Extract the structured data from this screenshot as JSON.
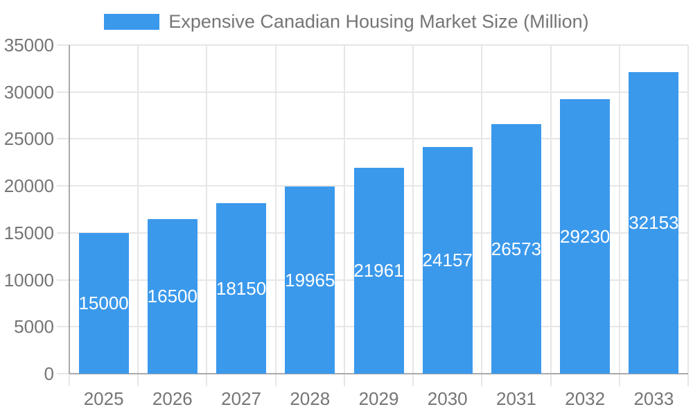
{
  "legend": {
    "label": "Expensive Canadian Housing Market Size (Million)"
  },
  "chart_data": {
    "type": "bar",
    "title": "Expensive Canadian Housing Market Size (Million)",
    "categories": [
      "2025",
      "2026",
      "2027",
      "2028",
      "2029",
      "2030",
      "2031",
      "2032",
      "2033"
    ],
    "values": [
      15000,
      16500,
      18150,
      19965,
      21961,
      24157,
      26573,
      29230,
      32153
    ],
    "xlabel": "",
    "ylabel": "",
    "ylim": [
      0,
      35000
    ],
    "ytick_step": 5000,
    "yticks": [
      0,
      5000,
      10000,
      15000,
      20000,
      25000,
      30000,
      35000
    ],
    "grid": true,
    "legend_position": "top",
    "bar_color": "#3b99ec",
    "bar_label_color": "#ffffff",
    "grid_color": "#e6e6e6",
    "axis_line_color": "#a9a9a9",
    "axis_text_color": "#757575"
  }
}
